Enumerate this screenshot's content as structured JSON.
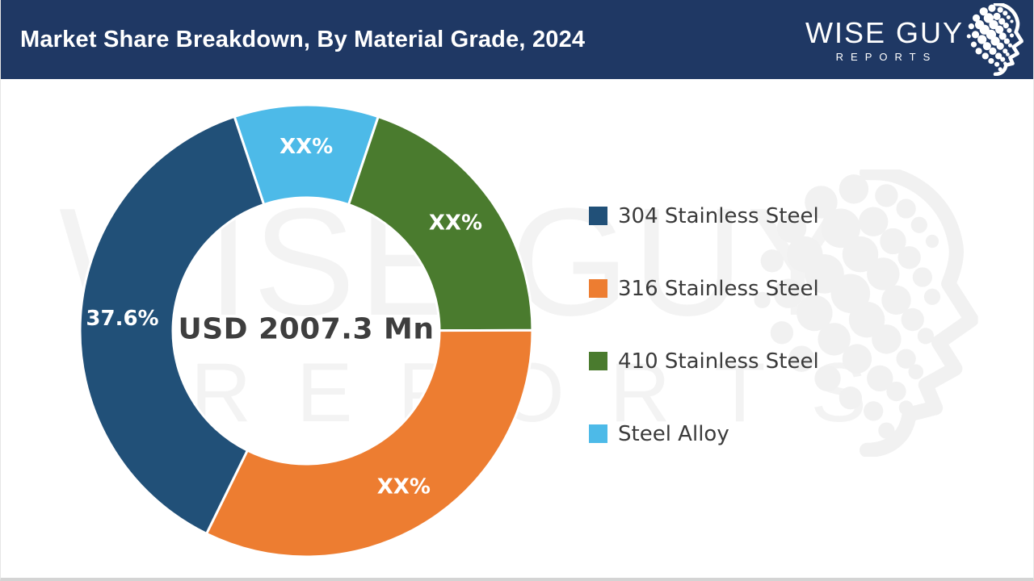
{
  "header": {
    "title": "Market Share Breakdown, By Material Grade, 2024",
    "logo": {
      "wordmark": "WISE GUY",
      "sub": "REPORTS"
    }
  },
  "watermark": {
    "line1": "WISE GUY",
    "line2": "REPORTS"
  },
  "chart_data": {
    "type": "pie",
    "subtype": "donut",
    "title": "Market Share Breakdown, By Material Grade, 2024",
    "center_label": "USD 2007.3 Mn",
    "legend_position": "right",
    "start_angle_deg": -18.5,
    "draw_order": [
      3,
      2,
      1,
      0
    ],
    "series": [
      {
        "name": "304 Stainless Steel",
        "value": 37.6,
        "display": "37.6%",
        "color": "#215078"
      },
      {
        "name": "316 Stainless Steel",
        "value": 32.3,
        "display": "XX%",
        "color": "#ed7d31"
      },
      {
        "name": "410 Stainless Steel",
        "value": 19.8,
        "display": "XX%",
        "color": "#4a7b2e"
      },
      {
        "name": "Steel Alloy",
        "value": 10.3,
        "display": "XX%",
        "color": "#4dbae8"
      }
    ]
  },
  "colors": {
    "header_bg": "#1f3864",
    "legend_text": "#3a3a3a",
    "center_text": "#3e3e3e",
    "watermark": "#f3f3f3",
    "bottom_border": "#d4d4d4"
  }
}
